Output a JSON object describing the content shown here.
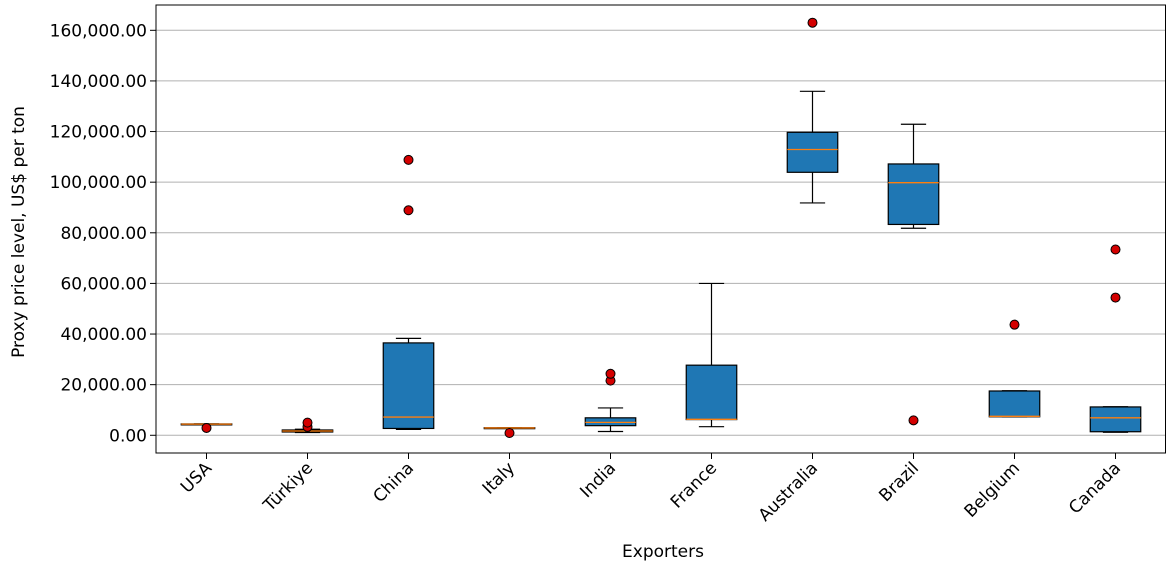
{
  "chart_data": {
    "type": "box",
    "title": "",
    "xlabel": "Exporters",
    "ylabel": "Proxy price level, US$ per ton",
    "ylim": [
      -7000,
      170000
    ],
    "yticks": [
      0,
      20000,
      40000,
      60000,
      80000,
      100000,
      120000,
      140000,
      160000
    ],
    "ytick_labels": [
      "0.00",
      "20,000.00",
      "40,000.00",
      "60,000.00",
      "80,000.00",
      "100,000.00",
      "120,000.00",
      "140,000.00",
      "160,000.00"
    ],
    "grid": "horizontal",
    "categories": [
      "USA",
      "Türkiye",
      "China",
      "Italy",
      "India",
      "France",
      "Australia",
      "Brazil",
      "Belgium",
      "Canada"
    ],
    "boxes": [
      {
        "whisker_low": 4300,
        "q1": 4300,
        "median": 4400,
        "q3": 4500,
        "whisker_high": 4500,
        "outliers": [
          2900
        ]
      },
      {
        "whisker_low": 1100,
        "q1": 1300,
        "median": 1700,
        "q3": 2100,
        "whisker_high": 2400,
        "outliers": [
          3300,
          5000
        ]
      },
      {
        "whisker_low": 2300,
        "q1": 2700,
        "median": 7200,
        "q3": 36500,
        "whisker_high": 38300,
        "outliers": [
          88900,
          108800
        ]
      },
      {
        "whisker_low": 2800,
        "q1": 2800,
        "median": 2900,
        "q3": 3000,
        "whisker_high": 3000,
        "outliers": [
          900
        ]
      },
      {
        "whisker_low": 1500,
        "q1": 3800,
        "median": 5100,
        "q3": 6900,
        "whisker_high": 10800,
        "outliers": [
          21600,
          24300
        ]
      },
      {
        "whisker_low": 3400,
        "q1": 6200,
        "median": 6300,
        "q3": 27700,
        "whisker_high": 60000,
        "outliers": []
      },
      {
        "whisker_low": 91800,
        "q1": 103900,
        "median": 112900,
        "q3": 119700,
        "whisker_high": 135900,
        "outliers": [
          163000
        ]
      },
      {
        "whisker_low": 81800,
        "q1": 83300,
        "median": 99800,
        "q3": 107200,
        "whisker_high": 122900,
        "outliers": [
          5900
        ]
      },
      {
        "whisker_low": 7300,
        "q1": 7300,
        "median": 7500,
        "q3": 17500,
        "whisker_high": 17600,
        "outliers": [
          43700
        ]
      },
      {
        "whisker_low": 1200,
        "q1": 1400,
        "median": 6900,
        "q3": 11200,
        "whisker_high": 11300,
        "outliers": [
          54400,
          73400
        ]
      }
    ],
    "colors": {
      "box_fill": "#1f77b4",
      "median": "#ff7f0e",
      "outlier_fill": "#d40000",
      "grid": "#b0b0b0"
    }
  }
}
